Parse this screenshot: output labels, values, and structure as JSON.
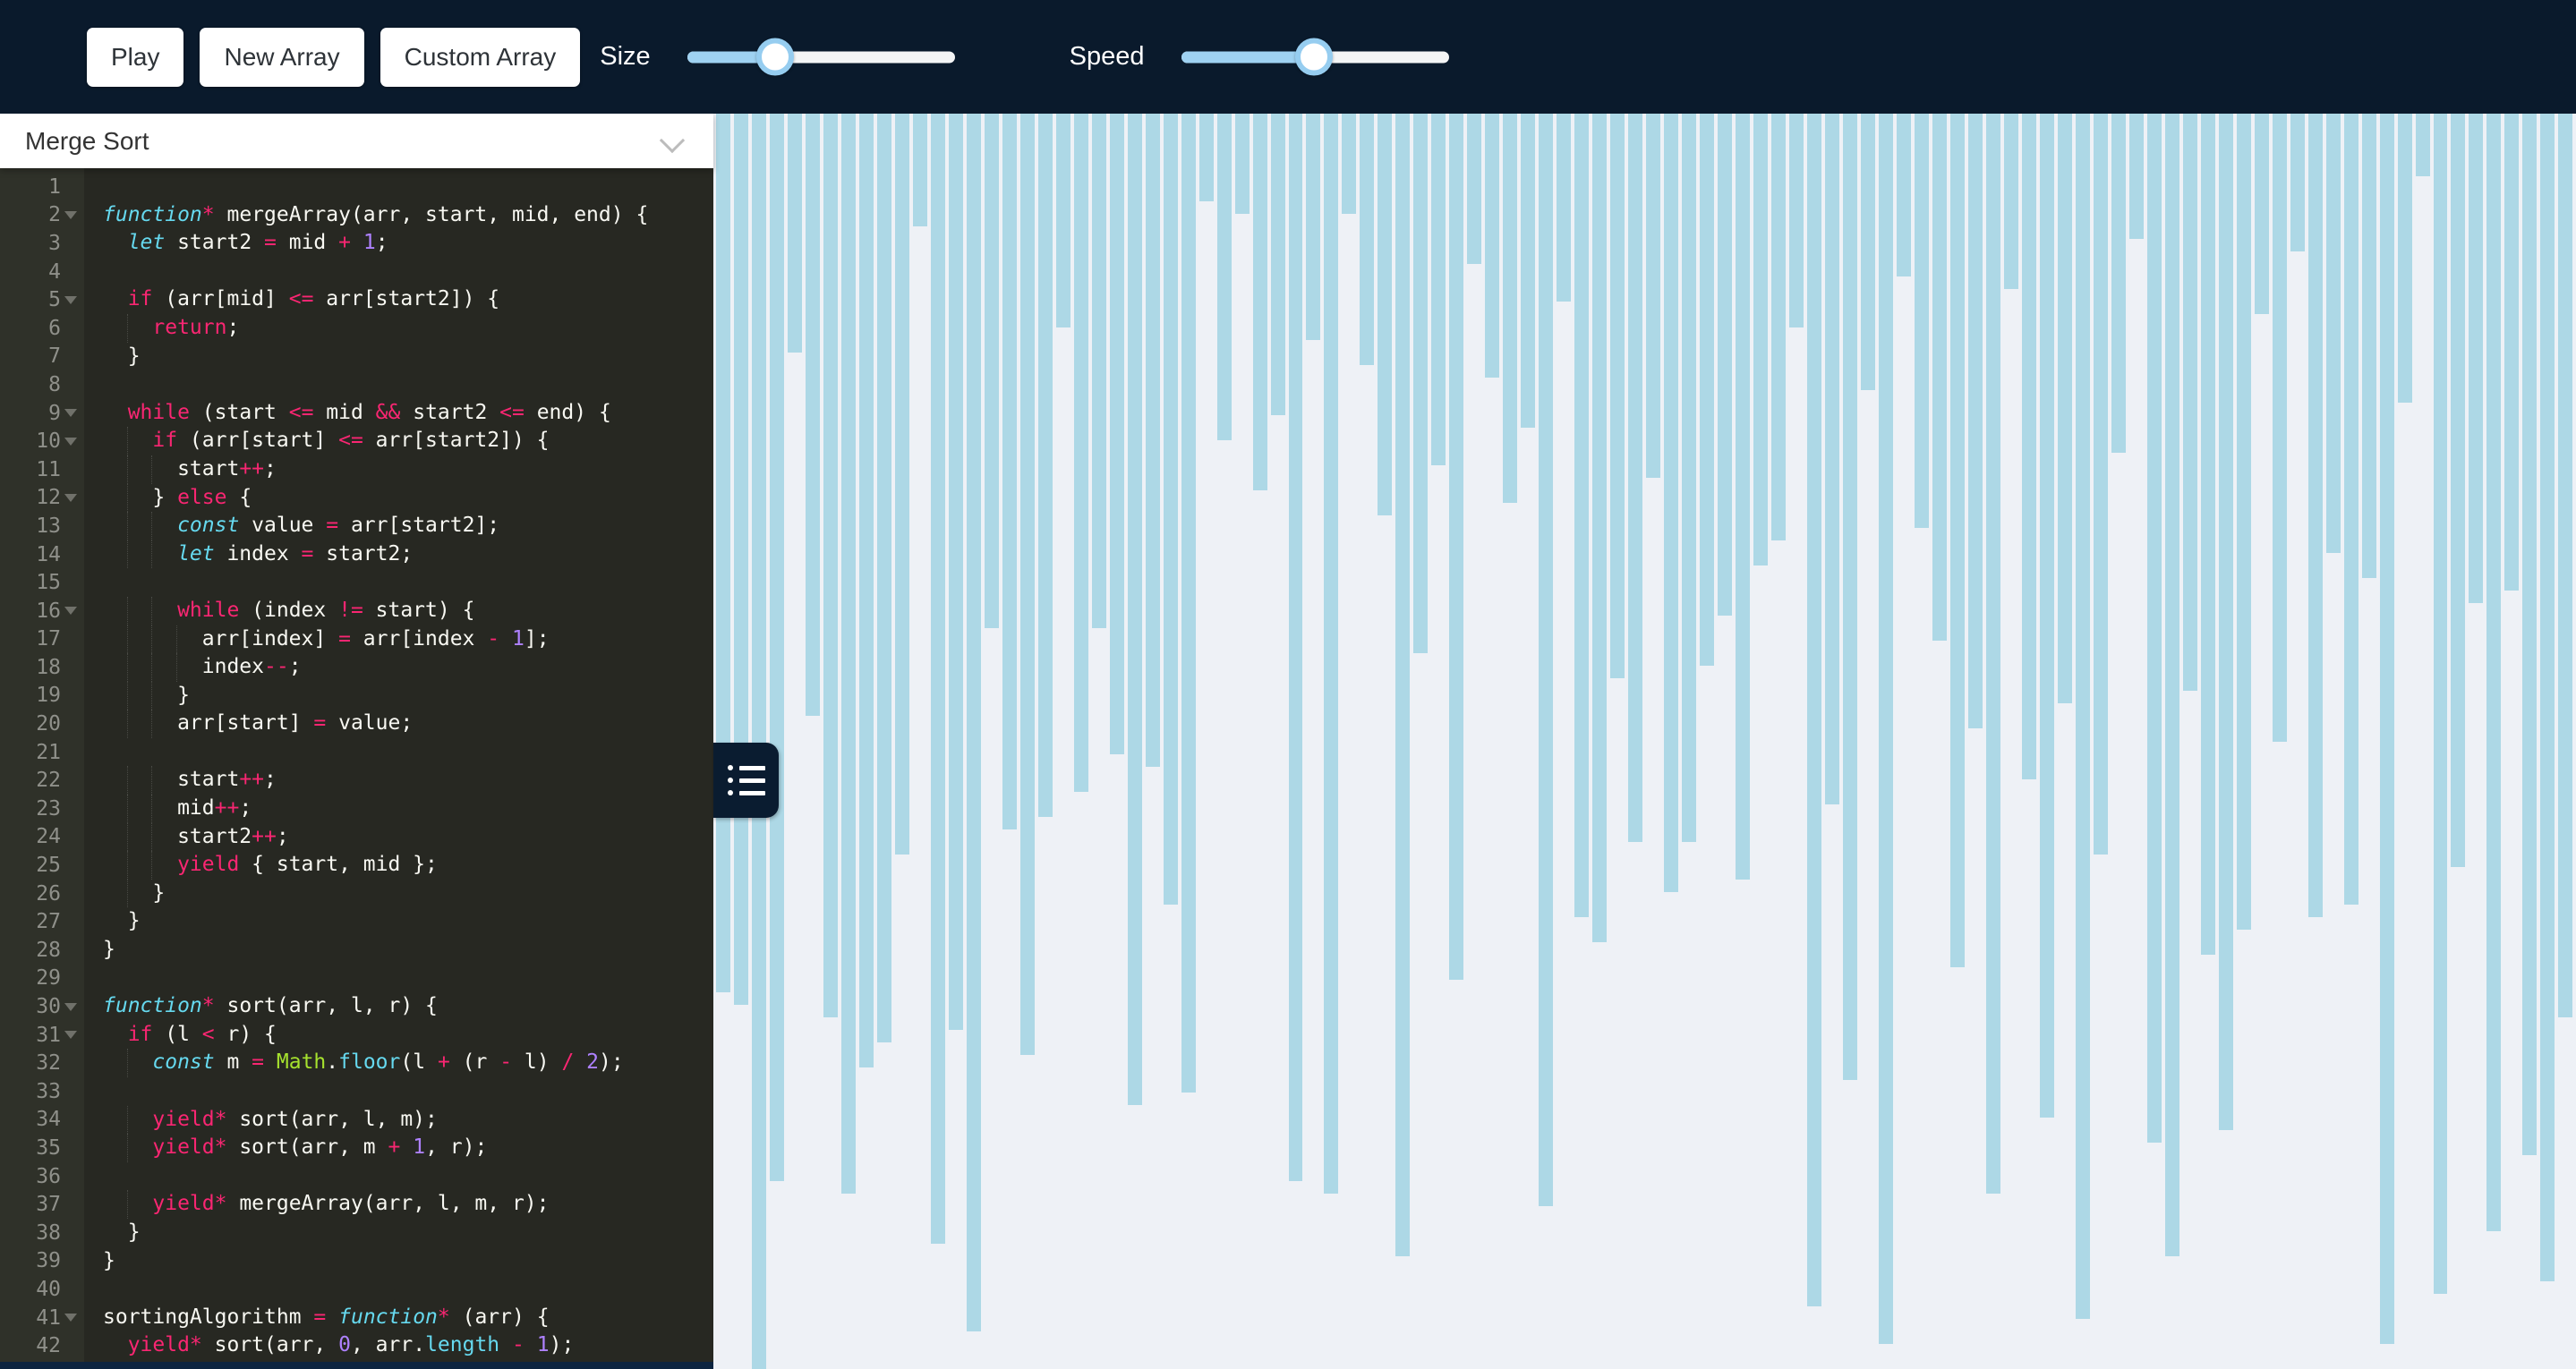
{
  "toolbar": {
    "buttons": [
      {
        "label": "Play"
      },
      {
        "label": "New Array"
      },
      {
        "label": "Custom Array"
      }
    ],
    "sliders": [
      {
        "label": "Size",
        "percent": 33
      },
      {
        "label": "Speed",
        "percent": 49.5
      }
    ]
  },
  "algorithm": {
    "selected": "Merge Sort"
  },
  "icons": {
    "dropdown": "chevron-down-icon",
    "log_button": "list-icon"
  },
  "colors": {
    "navbar_bg": "#0a1a2c",
    "button_bg": "#ffffff",
    "button_text": "#2e3338",
    "slider_fill": "#9fd2f2",
    "slider_thumb_ring": "#96cdf0",
    "editor_bg": "#272822",
    "gutter_bg": "#2f3129",
    "line_number": "#8f908a",
    "code_text": "#f8f8f2",
    "keyword": "#f92672",
    "storage": "#66d9ef",
    "number": "#ae81ff",
    "support_class": "#a6e22e",
    "support_function": "#66d9ef",
    "bar_color": "#add8e6",
    "viz_background": "#eef1f6"
  },
  "editor": {
    "lines": [
      {
        "n": 1,
        "tokens": []
      },
      {
        "n": 2,
        "fold": true,
        "tokens": [
          [
            "s",
            "function"
          ],
          [
            "k",
            "*"
          ],
          [
            "t",
            " mergeArray(arr, start, mid, end) {"
          ]
        ]
      },
      {
        "n": 3,
        "tokens": [
          [
            "t",
            "  "
          ],
          [
            "s",
            "let"
          ],
          [
            "t",
            " start2 "
          ],
          [
            "k",
            "="
          ],
          [
            "t",
            " mid "
          ],
          [
            "k",
            "+"
          ],
          [
            "t",
            " "
          ],
          [
            "n",
            "1"
          ],
          [
            "t",
            ";"
          ]
        ]
      },
      {
        "n": 4,
        "tokens": []
      },
      {
        "n": 5,
        "fold": true,
        "tokens": [
          [
            "t",
            "  "
          ],
          [
            "k",
            "if"
          ],
          [
            "t",
            " (arr[mid] "
          ],
          [
            "k",
            "<="
          ],
          [
            "t",
            " arr[start2]) {"
          ]
        ]
      },
      {
        "n": 6,
        "tokens": [
          [
            "t",
            "    "
          ],
          [
            "k",
            "return"
          ],
          [
            "t",
            ";"
          ]
        ]
      },
      {
        "n": 7,
        "tokens": [
          [
            "t",
            "  }"
          ]
        ]
      },
      {
        "n": 8,
        "tokens": []
      },
      {
        "n": 9,
        "fold": true,
        "tokens": [
          [
            "t",
            "  "
          ],
          [
            "k",
            "while"
          ],
          [
            "t",
            " (start "
          ],
          [
            "k",
            "<="
          ],
          [
            "t",
            " mid "
          ],
          [
            "k",
            "&&"
          ],
          [
            "t",
            " start2 "
          ],
          [
            "k",
            "<="
          ],
          [
            "t",
            " end) {"
          ]
        ]
      },
      {
        "n": 10,
        "fold": true,
        "tokens": [
          [
            "t",
            "    "
          ],
          [
            "k",
            "if"
          ],
          [
            "t",
            " (arr[start] "
          ],
          [
            "k",
            "<="
          ],
          [
            "t",
            " arr[start2]) {"
          ]
        ]
      },
      {
        "n": 11,
        "tokens": [
          [
            "t",
            "      start"
          ],
          [
            "k",
            "++"
          ],
          [
            "t",
            ";"
          ]
        ]
      },
      {
        "n": 12,
        "fold": true,
        "tokens": [
          [
            "t",
            "    } "
          ],
          [
            "k",
            "else"
          ],
          [
            "t",
            " {"
          ]
        ]
      },
      {
        "n": 13,
        "tokens": [
          [
            "t",
            "      "
          ],
          [
            "s",
            "const"
          ],
          [
            "t",
            " value "
          ],
          [
            "k",
            "="
          ],
          [
            "t",
            " arr[start2];"
          ]
        ]
      },
      {
        "n": 14,
        "tokens": [
          [
            "t",
            "      "
          ],
          [
            "s",
            "let"
          ],
          [
            "t",
            " index "
          ],
          [
            "k",
            "="
          ],
          [
            "t",
            " start2;"
          ]
        ]
      },
      {
        "n": 15,
        "tokens": []
      },
      {
        "n": 16,
        "fold": true,
        "tokens": [
          [
            "t",
            "      "
          ],
          [
            "k",
            "while"
          ],
          [
            "t",
            " (index "
          ],
          [
            "k",
            "!="
          ],
          [
            "t",
            " start) {"
          ]
        ]
      },
      {
        "n": 17,
        "tokens": [
          [
            "t",
            "        arr[index] "
          ],
          [
            "k",
            "="
          ],
          [
            "t",
            " arr[index "
          ],
          [
            "k",
            "-"
          ],
          [
            "t",
            " "
          ],
          [
            "n",
            "1"
          ],
          [
            "t",
            "];"
          ]
        ]
      },
      {
        "n": 18,
        "tokens": [
          [
            "t",
            "        index"
          ],
          [
            "k",
            "--"
          ],
          [
            "t",
            ";"
          ]
        ]
      },
      {
        "n": 19,
        "tokens": [
          [
            "t",
            "      }"
          ]
        ]
      },
      {
        "n": 20,
        "tokens": [
          [
            "t",
            "      arr[start] "
          ],
          [
            "k",
            "="
          ],
          [
            "t",
            " value;"
          ]
        ]
      },
      {
        "n": 21,
        "tokens": []
      },
      {
        "n": 22,
        "tokens": [
          [
            "t",
            "      start"
          ],
          [
            "k",
            "++"
          ],
          [
            "t",
            ";"
          ]
        ]
      },
      {
        "n": 23,
        "tokens": [
          [
            "t",
            "      mid"
          ],
          [
            "k",
            "++"
          ],
          [
            "t",
            ";"
          ]
        ]
      },
      {
        "n": 24,
        "tokens": [
          [
            "t",
            "      start2"
          ],
          [
            "k",
            "++"
          ],
          [
            "t",
            ";"
          ]
        ]
      },
      {
        "n": 25,
        "tokens": [
          [
            "t",
            "      "
          ],
          [
            "k",
            "yield"
          ],
          [
            "t",
            " { start, mid };"
          ]
        ]
      },
      {
        "n": 26,
        "tokens": [
          [
            "t",
            "    }"
          ]
        ]
      },
      {
        "n": 27,
        "tokens": [
          [
            "t",
            "  }"
          ]
        ]
      },
      {
        "n": 28,
        "tokens": [
          [
            "t",
            "}"
          ]
        ]
      },
      {
        "n": 29,
        "tokens": []
      },
      {
        "n": 30,
        "fold": true,
        "tokens": [
          [
            "s",
            "function"
          ],
          [
            "k",
            "*"
          ],
          [
            "t",
            " sort(arr, l, r) {"
          ]
        ]
      },
      {
        "n": 31,
        "fold": true,
        "tokens": [
          [
            "t",
            "  "
          ],
          [
            "k",
            "if"
          ],
          [
            "t",
            " (l "
          ],
          [
            "k",
            "<"
          ],
          [
            "t",
            " r) {"
          ]
        ]
      },
      {
        "n": 32,
        "tokens": [
          [
            "t",
            "    "
          ],
          [
            "s",
            "const"
          ],
          [
            "t",
            " m "
          ],
          [
            "k",
            "="
          ],
          [
            "t",
            " "
          ],
          [
            "c",
            "Math"
          ],
          [
            "t",
            "."
          ],
          [
            "f",
            "floor"
          ],
          [
            "t",
            "(l "
          ],
          [
            "k",
            "+"
          ],
          [
            "t",
            " (r "
          ],
          [
            "k",
            "-"
          ],
          [
            "t",
            " l) "
          ],
          [
            "k",
            "/"
          ],
          [
            "t",
            " "
          ],
          [
            "n",
            "2"
          ],
          [
            "t",
            ");"
          ]
        ]
      },
      {
        "n": 33,
        "tokens": []
      },
      {
        "n": 34,
        "tokens": [
          [
            "t",
            "    "
          ],
          [
            "k",
            "yield*"
          ],
          [
            "t",
            " sort(arr, l, m);"
          ]
        ]
      },
      {
        "n": 35,
        "tokens": [
          [
            "t",
            "    "
          ],
          [
            "k",
            "yield*"
          ],
          [
            "t",
            " sort(arr, m "
          ],
          [
            "k",
            "+"
          ],
          [
            "t",
            " "
          ],
          [
            "n",
            "1"
          ],
          [
            "t",
            ", r);"
          ]
        ]
      },
      {
        "n": 36,
        "tokens": []
      },
      {
        "n": 37,
        "tokens": [
          [
            "t",
            "    "
          ],
          [
            "k",
            "yield*"
          ],
          [
            "t",
            " mergeArray(arr, l, m, r);"
          ]
        ]
      },
      {
        "n": 38,
        "tokens": [
          [
            "t",
            "  }"
          ]
        ]
      },
      {
        "n": 39,
        "tokens": [
          [
            "t",
            "}"
          ]
        ]
      },
      {
        "n": 40,
        "tokens": []
      },
      {
        "n": 41,
        "fold": true,
        "tokens": [
          [
            "t",
            "sortingAlgorithm "
          ],
          [
            "k",
            "="
          ],
          [
            "t",
            " "
          ],
          [
            "s",
            "function"
          ],
          [
            "k",
            "*"
          ],
          [
            "t",
            " (arr) {"
          ]
        ]
      },
      {
        "n": 42,
        "tokens": [
          [
            "t",
            "  "
          ],
          [
            "k",
            "yield*"
          ],
          [
            "t",
            " sort(arr, "
          ],
          [
            "n",
            "0"
          ],
          [
            "t",
            ", arr."
          ],
          [
            "f",
            "length"
          ],
          [
            "t",
            " "
          ],
          [
            "k",
            "-"
          ],
          [
            "t",
            " "
          ],
          [
            "n",
            "1"
          ],
          [
            "t",
            ");"
          ]
        ]
      }
    ]
  },
  "visualization": {
    "bar_color": "#add8e6",
    "background": "#eef1f6",
    "bar_heights_percent": [
      70,
      71,
      100,
      85,
      19,
      48,
      72,
      86,
      76,
      74,
      59,
      9,
      90,
      73,
      97,
      41,
      57,
      75,
      56,
      17,
      54,
      41,
      51,
      79,
      52,
      63,
      78,
      7,
      26,
      8,
      30,
      24,
      85,
      18,
      86,
      8,
      20,
      32,
      91,
      43,
      28,
      69,
      12,
      21,
      31,
      25,
      87,
      15,
      64,
      66,
      45,
      58,
      29,
      62,
      58,
      44,
      40,
      61,
      36,
      34,
      17,
      95,
      55,
      77,
      22,
      98,
      13,
      33,
      42,
      68,
      49,
      86,
      14,
      53,
      80,
      47,
      96,
      59,
      27,
      10,
      82,
      91,
      46,
      67,
      81,
      65,
      16,
      50,
      11,
      64,
      35,
      63,
      37,
      98,
      23,
      5,
      94,
      60,
      39,
      89,
      38,
      83,
      93,
      72
    ]
  }
}
